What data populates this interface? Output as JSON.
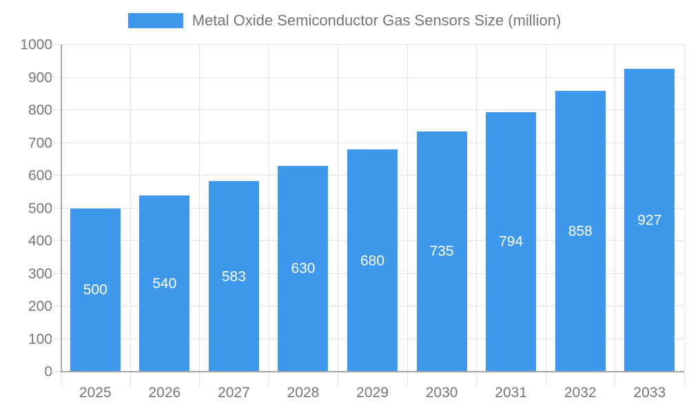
{
  "chart_data": {
    "type": "bar",
    "title": "Metal Oxide Semiconductor Gas Sensors Size (million)",
    "categories": [
      "2025",
      "2026",
      "2027",
      "2028",
      "2029",
      "2030",
      "2031",
      "2032",
      "2033"
    ],
    "values": [
      500,
      540,
      583,
      630,
      680,
      735,
      794,
      858,
      927
    ],
    "series": [
      {
        "name": "Metal Oxide Semiconductor Gas Sensors Size (million)",
        "values": [
          500,
          540,
          583,
          630,
          680,
          735,
          794,
          858,
          927
        ]
      }
    ],
    "xlabel": "",
    "ylabel": "",
    "ylim": [
      0,
      1000
    ],
    "yticks": [
      0,
      100,
      200,
      300,
      400,
      500,
      600,
      700,
      800,
      900,
      1000
    ],
    "grid": true,
    "legend_position": "top-center",
    "value_labels": "centered-inside-bars",
    "colors": {
      "bar": "#3E99ED",
      "value_label": "#ffffff",
      "axis_label": "#757575",
      "legend_label": "#757575",
      "axis_line": "#a6a6a6",
      "gridline": "#e3e3e3",
      "background": "#ffffff"
    }
  }
}
